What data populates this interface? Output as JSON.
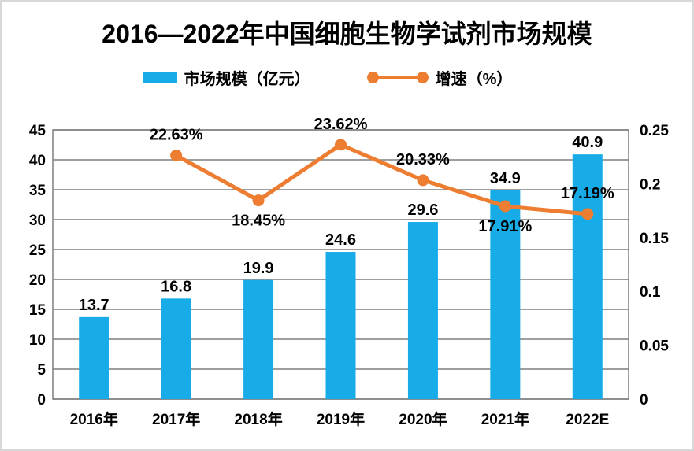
{
  "page": {
    "background": "#ffffff",
    "border_color": "#d8d8d8"
  },
  "colors": {
    "bar": "#17ACE8",
    "line": "#ED7D31",
    "grid": "#7F7F7F",
    "text": "#000000"
  },
  "chart_data": {
    "type": "bar+line",
    "title": "2016—2022年中国细胞生物学试剂市场规模",
    "categories": [
      "2016年",
      "2017年",
      "2018年",
      "2019年",
      "2020年",
      "2021年",
      "2022E"
    ],
    "series": [
      {
        "name": "市场规模（亿元）",
        "type": "bar",
        "axis": "left",
        "color": "#17ACE8",
        "values": [
          13.7,
          16.8,
          19.9,
          24.6,
          29.6,
          34.9,
          40.9
        ],
        "labels": [
          "13.7",
          "16.8",
          "19.9",
          "24.6",
          "29.6",
          "34.9",
          "40.9"
        ]
      },
      {
        "name": "增速（%）",
        "type": "line",
        "axis": "right",
        "color": "#ED7D31",
        "values": [
          null,
          0.2263,
          0.1845,
          0.2362,
          0.2033,
          0.1791,
          0.1719
        ],
        "labels": [
          "",
          "22.63%",
          "18.45%",
          "23.62%",
          "20.33%",
          "17.91%",
          "17.19%"
        ],
        "label_positions": [
          "",
          "above",
          "below",
          "above",
          "above",
          "below",
          "above"
        ]
      }
    ],
    "left_axis": {
      "min": 0,
      "max": 45,
      "step": 5,
      "ticks": [
        "0",
        "5",
        "10",
        "15",
        "20",
        "25",
        "30",
        "35",
        "40",
        "45"
      ]
    },
    "right_axis": {
      "min": 0,
      "max": 0.25,
      "step": 0.05,
      "ticks": [
        "0",
        "0.05",
        "0.1",
        "0.15",
        "0.2",
        "0.25"
      ]
    },
    "grid": true,
    "legend_position": "top"
  }
}
